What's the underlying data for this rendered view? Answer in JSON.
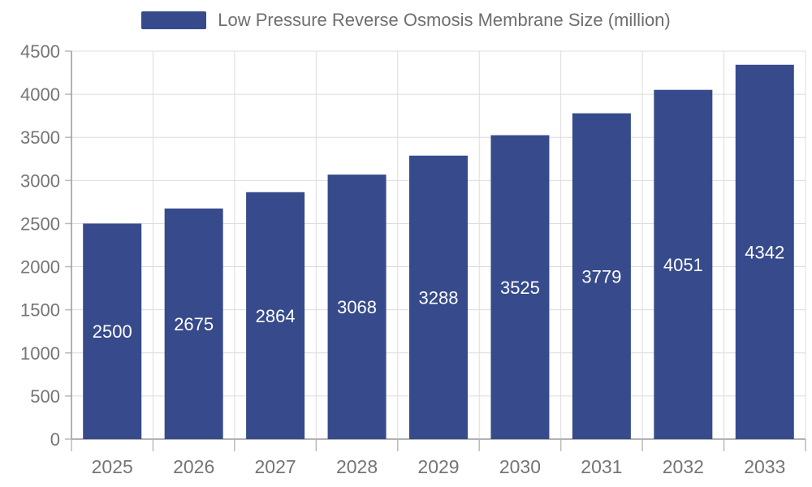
{
  "legend": {
    "label": "Low Pressure Reverse Osmosis Membrane Size (million)",
    "swatch_color": "#364A8C"
  },
  "chart_data": {
    "type": "bar",
    "title": "Low Pressure Reverse Osmosis Membrane Size (million)",
    "categories": [
      "2025",
      "2026",
      "2027",
      "2028",
      "2029",
      "2030",
      "2031",
      "2032",
      "2033"
    ],
    "values": [
      2500,
      2675,
      2864,
      3068,
      3288,
      3525,
      3779,
      4051,
      4342
    ],
    "xlabel": "",
    "ylabel": "",
    "ylim": [
      0,
      4500
    ],
    "yticks": [
      0,
      500,
      1000,
      1500,
      2000,
      2500,
      3000,
      3500,
      4000,
      4500
    ],
    "grid": true,
    "legend_position": "top-center",
    "bar_color": "#364A8C",
    "bar_label_color": "#ffffff",
    "tick_label_color": "#757575",
    "grid_color": "#dcdcdc",
    "y_axis_line_color": "#999999",
    "x_axis_line_color": "#b3b3b3",
    "tick_mark_color": "#bbbbbb"
  }
}
